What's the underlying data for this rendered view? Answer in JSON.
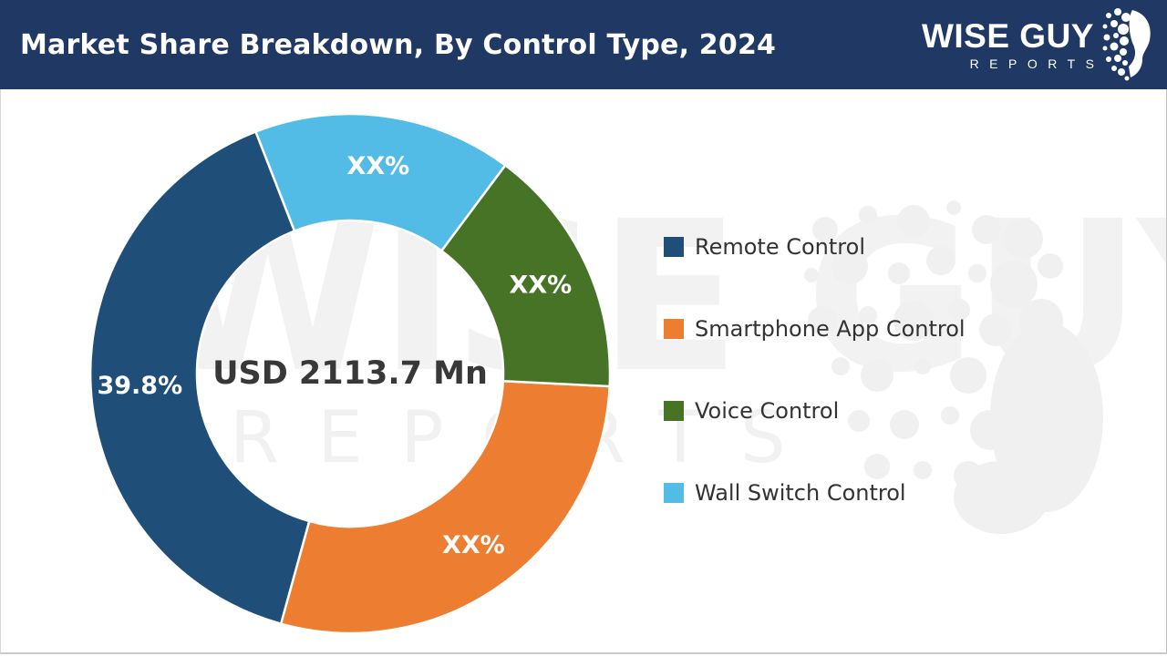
{
  "header": {
    "title": "Market Share Breakdown, By Control Type, 2024",
    "logo": {
      "name": "WISE GUY",
      "subtitle": "REPORTS"
    },
    "bg_color": "#1f3864"
  },
  "watermark": {
    "line1": "WISE GUY",
    "line2": "REPORTS",
    "color": "#f1f1f1"
  },
  "chart_data": {
    "type": "pie",
    "subtype": "donut",
    "title": "Market Share Breakdown, By Control Type, 2024",
    "center_text": "USD 2113.7 Mn",
    "start_angle_deg": 111.3,
    "direction": "counterclockwise",
    "legend_position": "right",
    "segments": [
      {
        "name": "Remote Control",
        "value": 39.8,
        "label": "39.8%",
        "color": "#1f4e79"
      },
      {
        "name": "Smartphone App Control",
        "value": 28.5,
        "label": "XX%",
        "color": "#ed7d31"
      },
      {
        "name": "Voice Control",
        "value": 15.6,
        "label": "XX%",
        "color": "#467326"
      },
      {
        "name": "Wall Switch Control",
        "value": 16.1,
        "label": "XX%",
        "color": "#52bce6"
      }
    ]
  },
  "colors": {
    "header_bg": "#1f3864",
    "center_text": "#383838",
    "legend_text": "#333333",
    "watermark": "#f1f1f1",
    "frame_line": "#c9c9c9"
  }
}
